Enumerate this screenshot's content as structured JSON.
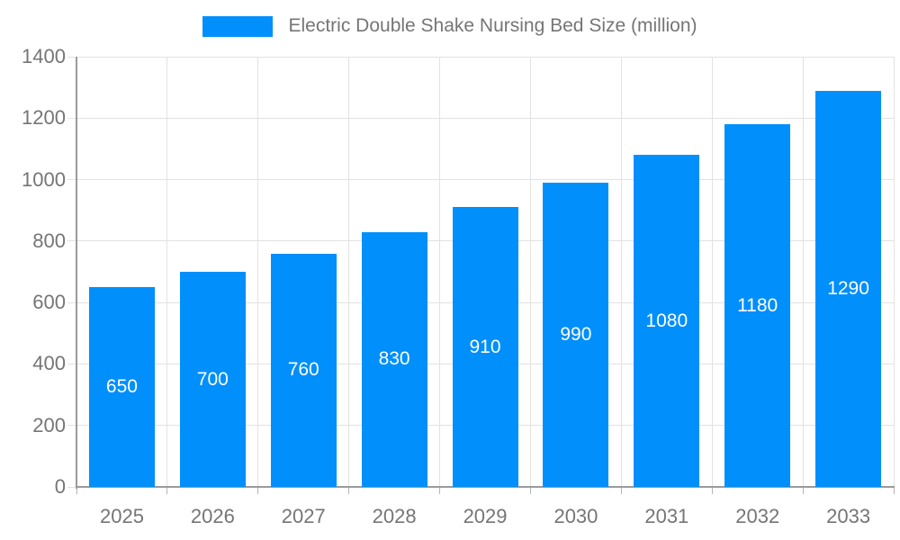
{
  "chart_data": {
    "type": "bar",
    "title": "Electric Double Shake Nursing Bed Size (million)",
    "categories": [
      "2025",
      "2026",
      "2027",
      "2028",
      "2029",
      "2030",
      "2031",
      "2032",
      "2033"
    ],
    "values": [
      650,
      700,
      760,
      830,
      910,
      990,
      1080,
      1180,
      1290
    ],
    "xlabel": "",
    "ylabel": "",
    "ylim": [
      0,
      1400
    ],
    "ytick_step": 200,
    "yticks": [
      0,
      200,
      400,
      600,
      800,
      1000,
      1200,
      1400
    ],
    "grid": true,
    "value_labels": "inside-center",
    "legend": {
      "position": "top",
      "entries": [
        {
          "label": "Electric Double Shake Nursing Bed Size (million)",
          "color": "#008FFB"
        }
      ]
    },
    "colors": {
      "bar": "#008FFB",
      "axis_text": "#757575",
      "gridline": "#e2e2e2",
      "axis_line": "#9a9a9a",
      "value_label": "#ffffff",
      "background": "#ffffff"
    }
  }
}
